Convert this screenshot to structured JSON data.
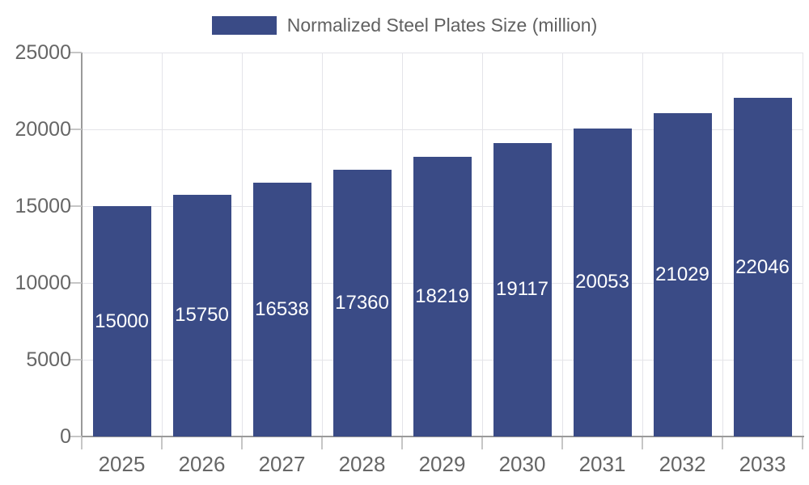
{
  "chart_data": {
    "type": "bar",
    "title": "",
    "legend": "Normalized Steel Plates Size (million)",
    "legend_position": "top",
    "categories": [
      "2025",
      "2026",
      "2027",
      "2028",
      "2029",
      "2030",
      "2031",
      "2032",
      "2033"
    ],
    "values": [
      15000,
      15750,
      16538,
      17360,
      18219,
      19117,
      20053,
      21029,
      22046
    ],
    "xlabel": "",
    "ylabel": "",
    "ylim": [
      0,
      25000
    ],
    "yticks": [
      0,
      5000,
      10000,
      15000,
      20000,
      25000
    ],
    "grid": true,
    "colors": {
      "bar": "#3a4b86",
      "value_label": "#ffffff",
      "axis_text": "#666666",
      "legend_text": "#616161",
      "grid_line": "#e4e4e9",
      "axis_line": "#9a9a9a",
      "tick": "#c6c6c6",
      "background": "#ffffff"
    }
  }
}
